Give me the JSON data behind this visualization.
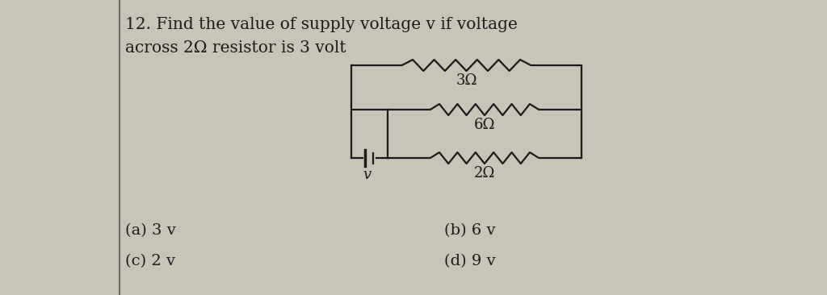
{
  "title_line1": "12. Find the value of supply voltage v if voltage",
  "title_line2": "across 2Ω resistor is 3 volt",
  "bg_color": "#c8c4b8",
  "text_color": "#1a1a1a",
  "options": [
    "(a) 3 v",
    "(b) 6 v",
    "(c) 2 v",
    "(d) 9 v"
  ],
  "resistors": [
    "3Ω",
    "6Ω",
    "2Ω"
  ],
  "voltage_label": "v",
  "title_fontsize": 14.5,
  "options_fontsize": 14
}
